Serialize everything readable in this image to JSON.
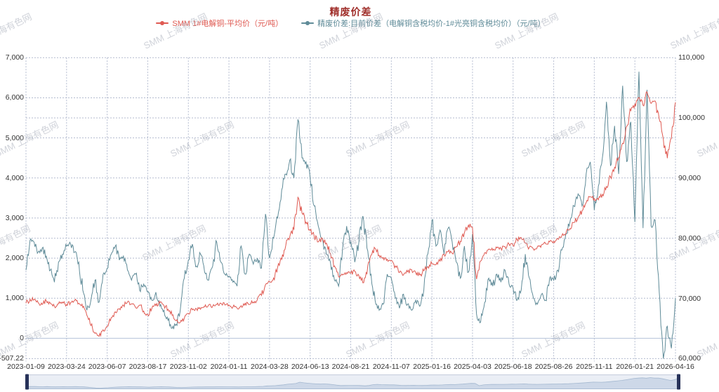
{
  "title": "精废价差",
  "watermark": {
    "text": "SMM 上海有色网"
  },
  "legend": [
    {
      "label": "SMM 1#电解铜-平均价（元/吨）",
      "color": "#df5a52"
    },
    {
      "label": "精废价差:目前价差（电解铜含税均价-1#光亮铜含税均价）（元/吨）",
      "color": "#5f8b98"
    }
  ],
  "colors": {
    "title": "#a02f2b",
    "red_series": "#df5a52",
    "teal_series": "#5f8b98",
    "grid": "#b3bbcf",
    "axis_text": "#333333",
    "zero_line": "#b5c3da",
    "nav_bg": "#eaeef5",
    "nav_border": "#c5ccdc",
    "nav_fill": "#cdd8e8",
    "nav_line": "#a4b8d0",
    "nav_handle": "#273259"
  },
  "axes": {
    "left": {
      "tick_labels": [
        "7,000",
        "6,000",
        "5,000",
        "4,000",
        "3,000",
        "2,000",
        "1,000",
        "0",
        "-507.22"
      ],
      "tick_values": [
        7000,
        6000,
        5000,
        4000,
        3000,
        2000,
        1000,
        0,
        -507.22
      ]
    },
    "right": {
      "tick_labels": [
        "110,000",
        "100,000",
        "90,000",
        "80,000",
        "70,000",
        "60,000"
      ],
      "tick_values": [
        110000,
        100000,
        90000,
        80000,
        70000,
        60000
      ]
    },
    "x": {
      "tick_labels": [
        "2023-01-09",
        "2023-03-24",
        "2023-06-07",
        "2023-08-17",
        "2023-11-02",
        "2024-01-11",
        "2024-03-28",
        "2024-06-13",
        "2024-08-21",
        "2024-11-07",
        "2025-01-16",
        "2025-04-03",
        "2025-06-18",
        "2025-08-26",
        "2025-11-11",
        "2026-01-21",
        "2026-04-16"
      ]
    }
  },
  "chart_data": {
    "type": "line",
    "title": "精废价差",
    "x_start": "2023-01-09",
    "x_end": "2026-04-16",
    "x_tick_labels": [
      "2023-01-09",
      "2023-03-24",
      "2023-06-07",
      "2023-08-17",
      "2023-11-02",
      "2024-01-11",
      "2024-03-28",
      "2024-06-13",
      "2024-08-21",
      "2024-11-07",
      "2025-01-16",
      "2025-04-03",
      "2025-06-18",
      "2025-08-26",
      "2025-11-11",
      "2026-01-21",
      "2026-04-16"
    ],
    "grid": true,
    "legend_position": "top",
    "left_axis": {
      "label": "元/吨",
      "min": -507.22,
      "max": 7000
    },
    "right_axis": {
      "label": "元/吨",
      "min": 60000,
      "max": 110000
    },
    "series": [
      {
        "name": "精废价差:目前价差（电解铜含税均价-1#光亮铜含税均价）（元/吨）",
        "axis": "left",
        "color": "#5f8b98",
        "values": [
          1700,
          2450,
          2400,
          2150,
          2250,
          2050,
          1700,
          1400,
          1900,
          2100,
          2300,
          2350,
          2150,
          1900,
          1200,
          700,
          950,
          1450,
          900,
          1600,
          1750,
          2100,
          2300,
          1950,
          2050,
          1700,
          1450,
          1600,
          1200,
          1350,
          1150,
          950,
          1150,
          800,
          700,
          450,
          250,
          350,
          700,
          1500,
          1950,
          2350,
          1800,
          2100,
          1650,
          1450,
          1800,
          2400,
          1900,
          1600,
          1550,
          1400,
          1300,
          2300,
          1600,
          2100,
          1850,
          2000,
          1750,
          3100,
          2000,
          2500,
          3000,
          3700,
          4100,
          4450,
          4000,
          5450,
          4500,
          4400,
          4000,
          3300,
          2800,
          2500,
          2100,
          1900,
          1450,
          1300,
          2250,
          2800,
          2400,
          1900,
          2400,
          3050,
          2250,
          1600,
          950,
          700,
          850,
          1600,
          1500,
          1000,
          750,
          1100,
          850,
          700,
          950,
          800,
          1200,
          2100,
          2950,
          2300,
          2700,
          2100,
          2750,
          2400,
          1900,
          1500,
          2300,
          1650,
          2600,
          600,
          400,
          900,
          1500,
          1300,
          1600,
          1400,
          1700,
          1350,
          1250,
          950,
          1200,
          2100,
          1500,
          1000,
          850,
          1100,
          950,
          1500,
          1450,
          1700,
          2200,
          2600,
          2900,
          3300,
          3600,
          3300,
          4100,
          4400,
          3200,
          3800,
          4500,
          5900,
          4300,
          5300,
          4100,
          6300,
          4400,
          5400,
          2900,
          6650,
          2750,
          6200,
          2800,
          2950,
          1150,
          -507,
          300,
          -250,
          1000
        ]
      },
      {
        "name": "SMM 1#电解铜-平均价（元/吨）",
        "axis": "right",
        "color": "#df5a52",
        "values": [
          69200,
          69900,
          69800,
          69300,
          69000,
          69600,
          69200,
          68700,
          69100,
          69400,
          69000,
          69300,
          69700,
          69200,
          68500,
          67200,
          65500,
          64200,
          63700,
          64800,
          65400,
          66800,
          67800,
          68300,
          68900,
          69400,
          69100,
          68500,
          68900,
          67900,
          67300,
          68300,
          68800,
          69300,
          68800,
          68200,
          67200,
          66300,
          66000,
          66700,
          67500,
          68100,
          68300,
          68200,
          68600,
          68900,
          68700,
          69000,
          69200,
          68900,
          68900,
          68600,
          68400,
          68800,
          69200,
          69000,
          69400,
          69800,
          70500,
          72300,
          72800,
          73400,
          75200,
          76500,
          78800,
          80300,
          81500,
          86800,
          84200,
          82700,
          81300,
          80300,
          79400,
          80000,
          79200,
          77500,
          75400,
          73600,
          73900,
          74300,
          74200,
          74500,
          73800,
          72600,
          74100,
          77200,
          78300,
          77200,
          76800,
          76500,
          76300,
          75400,
          74300,
          73900,
          74400,
          74800,
          74300,
          73900,
          74600,
          75300,
          75800,
          75600,
          76200,
          77300,
          77800,
          77500,
          78600,
          79500,
          80900,
          82200,
          81800,
          73200,
          76200,
          77600,
          78200,
          78000,
          78400,
          78300,
          78600,
          79000,
          78800,
          79800,
          80100,
          79200,
          78500,
          78200,
          78600,
          78900,
          79100,
          79400,
          79500,
          79900,
          80400,
          80800,
          81600,
          82600,
          83400,
          84600,
          85900,
          86900,
          86600,
          86400,
          87300,
          88600,
          90200,
          91800,
          93400,
          95800,
          98600,
          101200,
          102300,
          103400,
          102100,
          104300,
          102400,
          102800,
          99800,
          96500,
          93300,
          96600,
          102600
        ]
      }
    ]
  },
  "navigator": {
    "type": "scrollbar",
    "range_start": "2023-01-09",
    "range_end": "2026-04-16"
  }
}
